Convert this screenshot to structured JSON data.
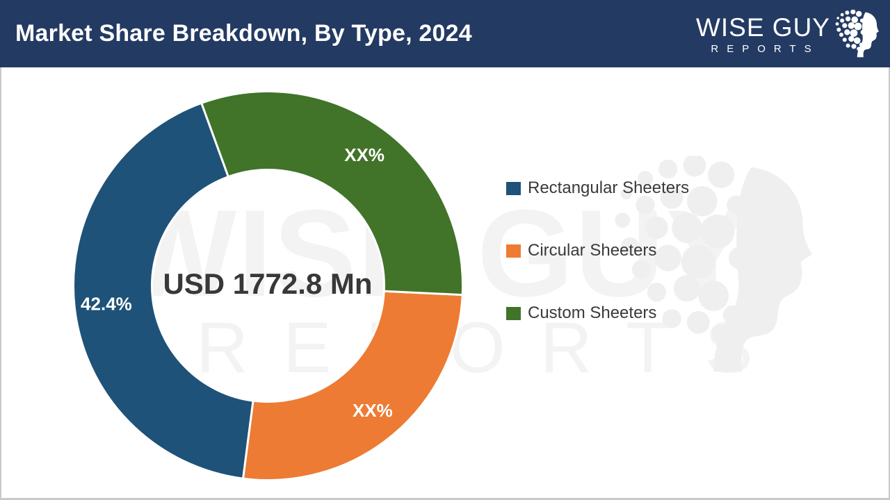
{
  "header": {
    "title": "Market Share Breakdown, By Type, 2024",
    "background": "#233A63",
    "logo": {
      "line1": "WISE GUY",
      "line2": "REPORTS"
    }
  },
  "chart_data": {
    "type": "pie",
    "subtype": "donut",
    "title": "Market Share Breakdown, By Type, 2024",
    "center_label": "USD 1772.8 Mn",
    "start_angle_deg": 110,
    "direction": "counterclockwise",
    "legend_position": "right",
    "slices": [
      {
        "name": "Rectangular Sheeters",
        "value_pct": 42.4,
        "label": "42.4%",
        "color": "#1E5278"
      },
      {
        "name": "Circular Sheeters",
        "value_pct": 26.3,
        "label": "XX%",
        "color": "#ED7B33"
      },
      {
        "name": "Custom Sheeters",
        "value_pct": 31.3,
        "label": "XX%",
        "color": "#417328"
      }
    ]
  },
  "watermark": {
    "line1": "WISE GUY",
    "line2": "REPORTS"
  },
  "colors": {
    "slice_separator": "#FFFFFF",
    "center_text": "#383838",
    "legend_text": "#3A3A3A",
    "frame_border": "#C9C9C9",
    "watermark": "#F3F3F3"
  }
}
